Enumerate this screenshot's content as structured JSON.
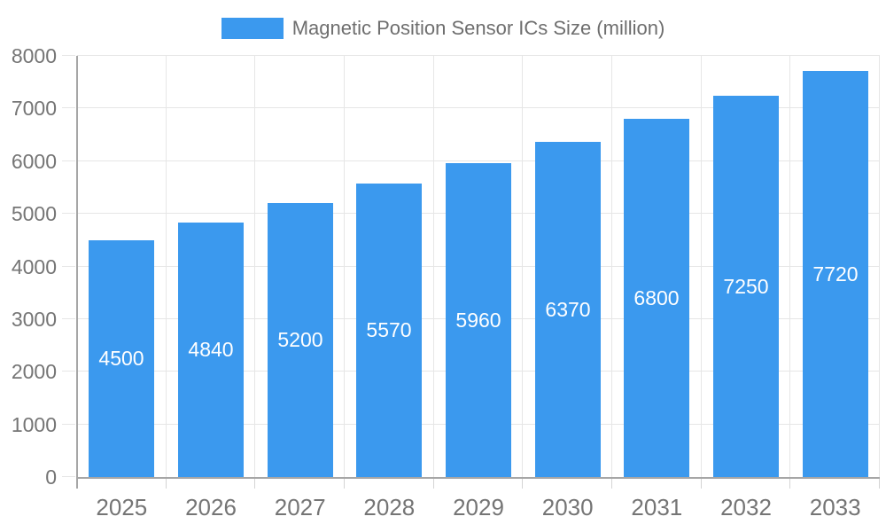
{
  "legend": {
    "label": "Magnetic Position Sensor ICs Size (million)"
  },
  "chart_data": {
    "type": "bar",
    "title": "Magnetic Position Sensor ICs Size (million)",
    "categories": [
      "2025",
      "2026",
      "2027",
      "2028",
      "2029",
      "2030",
      "2031",
      "2032",
      "2033"
    ],
    "values": [
      4500,
      4840,
      5200,
      5570,
      5960,
      6370,
      6800,
      7250,
      7720
    ],
    "xlabel": "",
    "ylabel": "",
    "ylim": [
      0,
      8000
    ],
    "ytick_step": 1000,
    "ytick_labels": [
      "0",
      "1000",
      "2000",
      "3000",
      "4000",
      "5000",
      "6000",
      "7000",
      "8000"
    ],
    "grid": true,
    "legend_position": "top-center",
    "value_labels_inside_bars": true,
    "colors": {
      "bar": "#3B99EE",
      "value_label": "#ffffff",
      "axis": "#a6a6a6",
      "gridline": "#e6e6e6",
      "tick_label": "#757575",
      "legend_text": "#6e6e6e"
    }
  }
}
